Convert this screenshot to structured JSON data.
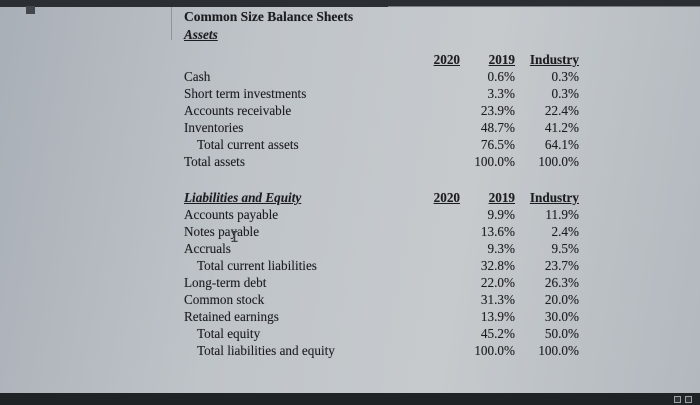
{
  "title": "Common Size Balance Sheets",
  "assets": {
    "heading": "Assets",
    "columns": [
      "2020",
      "2019",
      "Industry"
    ],
    "rows": [
      {
        "label": "Cash",
        "v2020": "",
        "v2019": "0.6%",
        "industry": "0.3%"
      },
      {
        "label": "Short term investments",
        "v2020": "",
        "v2019": "3.3%",
        "industry": "0.3%"
      },
      {
        "label": "Accounts receivable",
        "v2020": "",
        "v2019": "23.9%",
        "industry": "22.4%"
      },
      {
        "label": "Inventories",
        "v2020": "",
        "v2019": "48.7%",
        "industry": "41.2%"
      },
      {
        "label": "Total current assets",
        "v2020": "",
        "v2019": "76.5%",
        "industry": "64.1%"
      },
      {
        "label": "Total assets",
        "v2020": "",
        "v2019": "100.0%",
        "industry": "100.0%"
      }
    ]
  },
  "liabilities": {
    "heading": "Liabilities and Equity",
    "columns": [
      "2020",
      "2019",
      "Industry"
    ],
    "rows": [
      {
        "label": "Accounts payable",
        "v2020": "",
        "v2019": "9.9%",
        "industry": "11.9%"
      },
      {
        "label": "Notes payable",
        "v2020": "",
        "v2019": "13.6%",
        "industry": "2.4%"
      },
      {
        "label": "Accruals",
        "v2020": "",
        "v2019": "9.3%",
        "industry": "9.5%"
      },
      {
        "label": "Total current liabilities",
        "v2020": "",
        "v2019": "32.8%",
        "industry": "23.7%"
      },
      {
        "label": "Long-term debt",
        "v2020": "",
        "v2019": "22.0%",
        "industry": "26.3%"
      },
      {
        "label": "Common stock",
        "v2020": "",
        "v2019": "31.3%",
        "industry": "20.0%"
      },
      {
        "label": "Retained earnings",
        "v2020": "",
        "v2019": "13.9%",
        "industry": "30.0%"
      },
      {
        "label": "Total equity",
        "v2020": "",
        "v2019": "45.2%",
        "industry": "50.0%"
      },
      {
        "label": "Total liabilities and equity",
        "v2020": "",
        "v2019": "100.0%",
        "industry": "100.0%"
      }
    ]
  }
}
